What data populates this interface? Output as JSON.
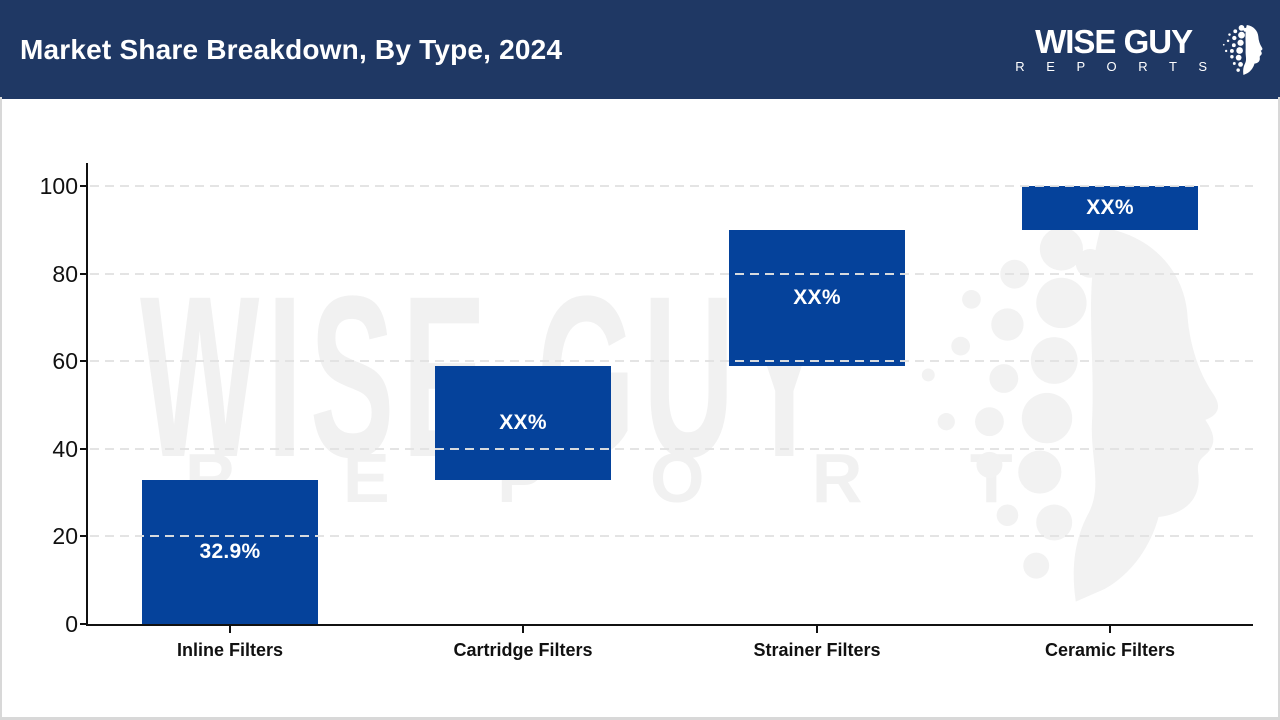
{
  "header": {
    "title": "Market Share Breakdown, By Type, 2024",
    "brand": {
      "line1": "WISE GUY",
      "line2": "R E P O R T S"
    }
  },
  "watermark": {
    "line1": "WISE GUY",
    "line2": "R E P O R T S"
  },
  "chart_data": {
    "type": "bar",
    "subtype": "floating-waterfall",
    "title": "Market Share Breakdown, By Type, 2024",
    "categories": [
      "Inline Filters",
      "Cartridge Filters",
      "Strainer Filters",
      "Ceramic Filters"
    ],
    "segments": [
      {
        "category": "Inline Filters",
        "start": 0,
        "end": 32.9,
        "label": "32.9%"
      },
      {
        "category": "Cartridge Filters",
        "start": 32.9,
        "end": 59,
        "label": "XX%"
      },
      {
        "category": "Strainer Filters",
        "start": 59,
        "end": 90,
        "label": "XX%"
      },
      {
        "category": "Ceramic Filters",
        "start": 90,
        "end": 100,
        "label": "XX%"
      }
    ],
    "xlabel": "",
    "ylabel": "",
    "ylim": [
      0,
      100
    ],
    "yticks": [
      0,
      20,
      40,
      60,
      80,
      100
    ],
    "grid": "horizontal-dashed",
    "legend": "none",
    "colors": {
      "bar": "#05429b",
      "header_bg": "#1f3864",
      "grid": "#e2e2e2",
      "axis": "#111111",
      "watermark": "#f1f1f1",
      "frame_border": "#d8d8d8"
    }
  }
}
